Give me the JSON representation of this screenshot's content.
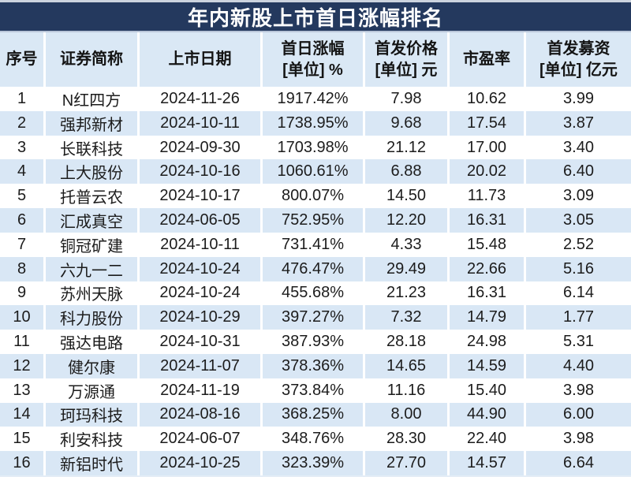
{
  "title": "年内新股上市首日涨幅排名",
  "colors": {
    "title_bg": "#24395E",
    "title_text": "#FFFFFF",
    "header_bg": "#DAE8F5",
    "row_alt_bg": "#D9E7F5",
    "row_bg": "#FFFFFF",
    "data_text": "#1C1C1C",
    "separator": "#FFFFFF"
  },
  "header": {
    "columns": [
      {
        "key": "rank",
        "line1": "序号",
        "line2": ""
      },
      {
        "key": "name",
        "line1": "证券简称",
        "line2": ""
      },
      {
        "key": "date",
        "line1": "上市日期",
        "line2": ""
      },
      {
        "key": "gain",
        "line1": "首日涨幅",
        "line2": "[单位] %"
      },
      {
        "key": "price",
        "line1": "首发价格",
        "line2": "[单位] 元"
      },
      {
        "key": "pe",
        "line1": "市盈率",
        "line2": ""
      },
      {
        "key": "raise",
        "line1": "首发募资",
        "line2": "[单位] 亿元"
      }
    ]
  },
  "chart_data": {
    "type": "table",
    "title": "年内新股上市首日涨幅排名",
    "columns": [
      "序号",
      "证券简称",
      "上市日期",
      "首日涨幅 [单位] %",
      "首发价格 [单位] 元",
      "市盈率",
      "首发募资 [单位] 亿元"
    ],
    "rows": [
      [
        "1",
        "N红四方",
        "2024-11-26",
        "1917.42%",
        "7.98",
        "10.62",
        "3.99"
      ],
      [
        "2",
        "强邦新材",
        "2024-10-11",
        "1738.95%",
        "9.68",
        "17.54",
        "3.87"
      ],
      [
        "3",
        "长联科技",
        "2024-09-30",
        "1703.98%",
        "21.12",
        "17.00",
        "3.40"
      ],
      [
        "4",
        "上大股份",
        "2024-10-16",
        "1060.61%",
        "6.88",
        "20.02",
        "6.40"
      ],
      [
        "5",
        "托普云农",
        "2024-10-17",
        "800.07%",
        "14.50",
        "11.73",
        "3.09"
      ],
      [
        "6",
        "汇成真空",
        "2024-06-05",
        "752.95%",
        "12.20",
        "16.31",
        "3.05"
      ],
      [
        "7",
        "铜冠矿建",
        "2024-10-11",
        "731.41%",
        "4.33",
        "15.48",
        "2.52"
      ],
      [
        "8",
        "六九一二",
        "2024-10-24",
        "476.47%",
        "29.49",
        "22.66",
        "5.16"
      ],
      [
        "9",
        "苏州天脉",
        "2024-10-24",
        "455.68%",
        "21.23",
        "16.31",
        "6.14"
      ],
      [
        "10",
        "科力股份",
        "2024-10-29",
        "397.27%",
        "7.32",
        "14.79",
        "1.77"
      ],
      [
        "11",
        "强达电路",
        "2024-10-31",
        "387.93%",
        "28.18",
        "24.98",
        "5.31"
      ],
      [
        "12",
        "健尔康",
        "2024-11-07",
        "378.36%",
        "14.65",
        "14.59",
        "4.40"
      ],
      [
        "13",
        "万源通",
        "2024-11-19",
        "373.84%",
        "11.16",
        "15.40",
        "3.98"
      ],
      [
        "14",
        "珂玛科技",
        "2024-08-16",
        "368.25%",
        "8.00",
        "44.90",
        "6.00"
      ],
      [
        "15",
        "利安科技",
        "2024-06-07",
        "348.76%",
        "28.30",
        "22.40",
        "3.98"
      ],
      [
        "16",
        "新铝时代",
        "2024-10-25",
        "323.39%",
        "27.70",
        "14.57",
        "6.64"
      ]
    ]
  }
}
